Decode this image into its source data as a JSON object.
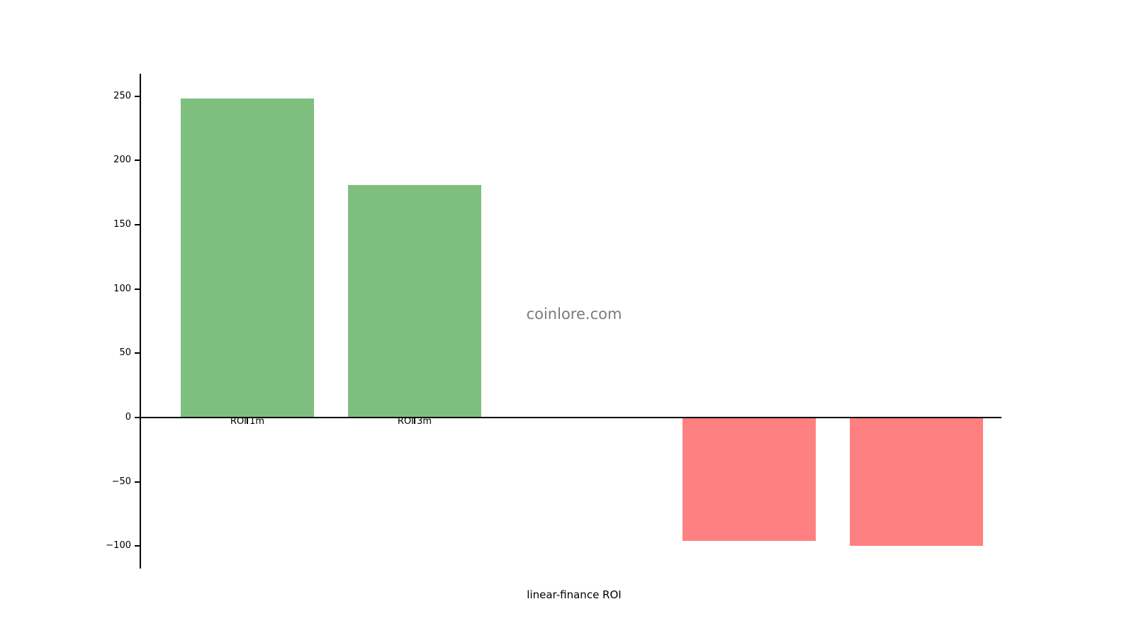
{
  "page": {
    "background": "#ffffff"
  },
  "chart_data": {
    "type": "bar",
    "title": "linear-finance ROI",
    "watermark": "coinlore.com",
    "xlabel": "",
    "ylabel": "",
    "ylim": [
      -117.5,
      267.5
    ],
    "y_ticks": [
      250,
      200,
      150,
      100,
      50,
      0,
      -50,
      -100
    ],
    "grid": false,
    "legend": null,
    "categories": [
      "ROI 1m",
      "ROI 3m",
      "",
      ""
    ],
    "values": [
      248,
      181,
      -96,
      -100
    ],
    "bars": [
      {
        "label": "ROI 1m",
        "label_visible": true,
        "value": 248,
        "slot": 0,
        "color": "#7ebf80"
      },
      {
        "label": "ROI 3m",
        "label_visible": true,
        "value": 181,
        "slot": 1,
        "color": "#7ebf80"
      },
      {
        "label": "",
        "label_visible": false,
        "value": -96,
        "slot": 3,
        "color": "#ff8080"
      },
      {
        "label": "",
        "label_visible": false,
        "value": -100,
        "slot": 4,
        "color": "#ff8080"
      }
    ],
    "colors": {
      "positive": "#7ebf80",
      "negative": "#ff8080",
      "axis": "#000000",
      "tick_text": "#000000",
      "watermark": "#7b7b7b",
      "title_text": "#000000"
    }
  }
}
